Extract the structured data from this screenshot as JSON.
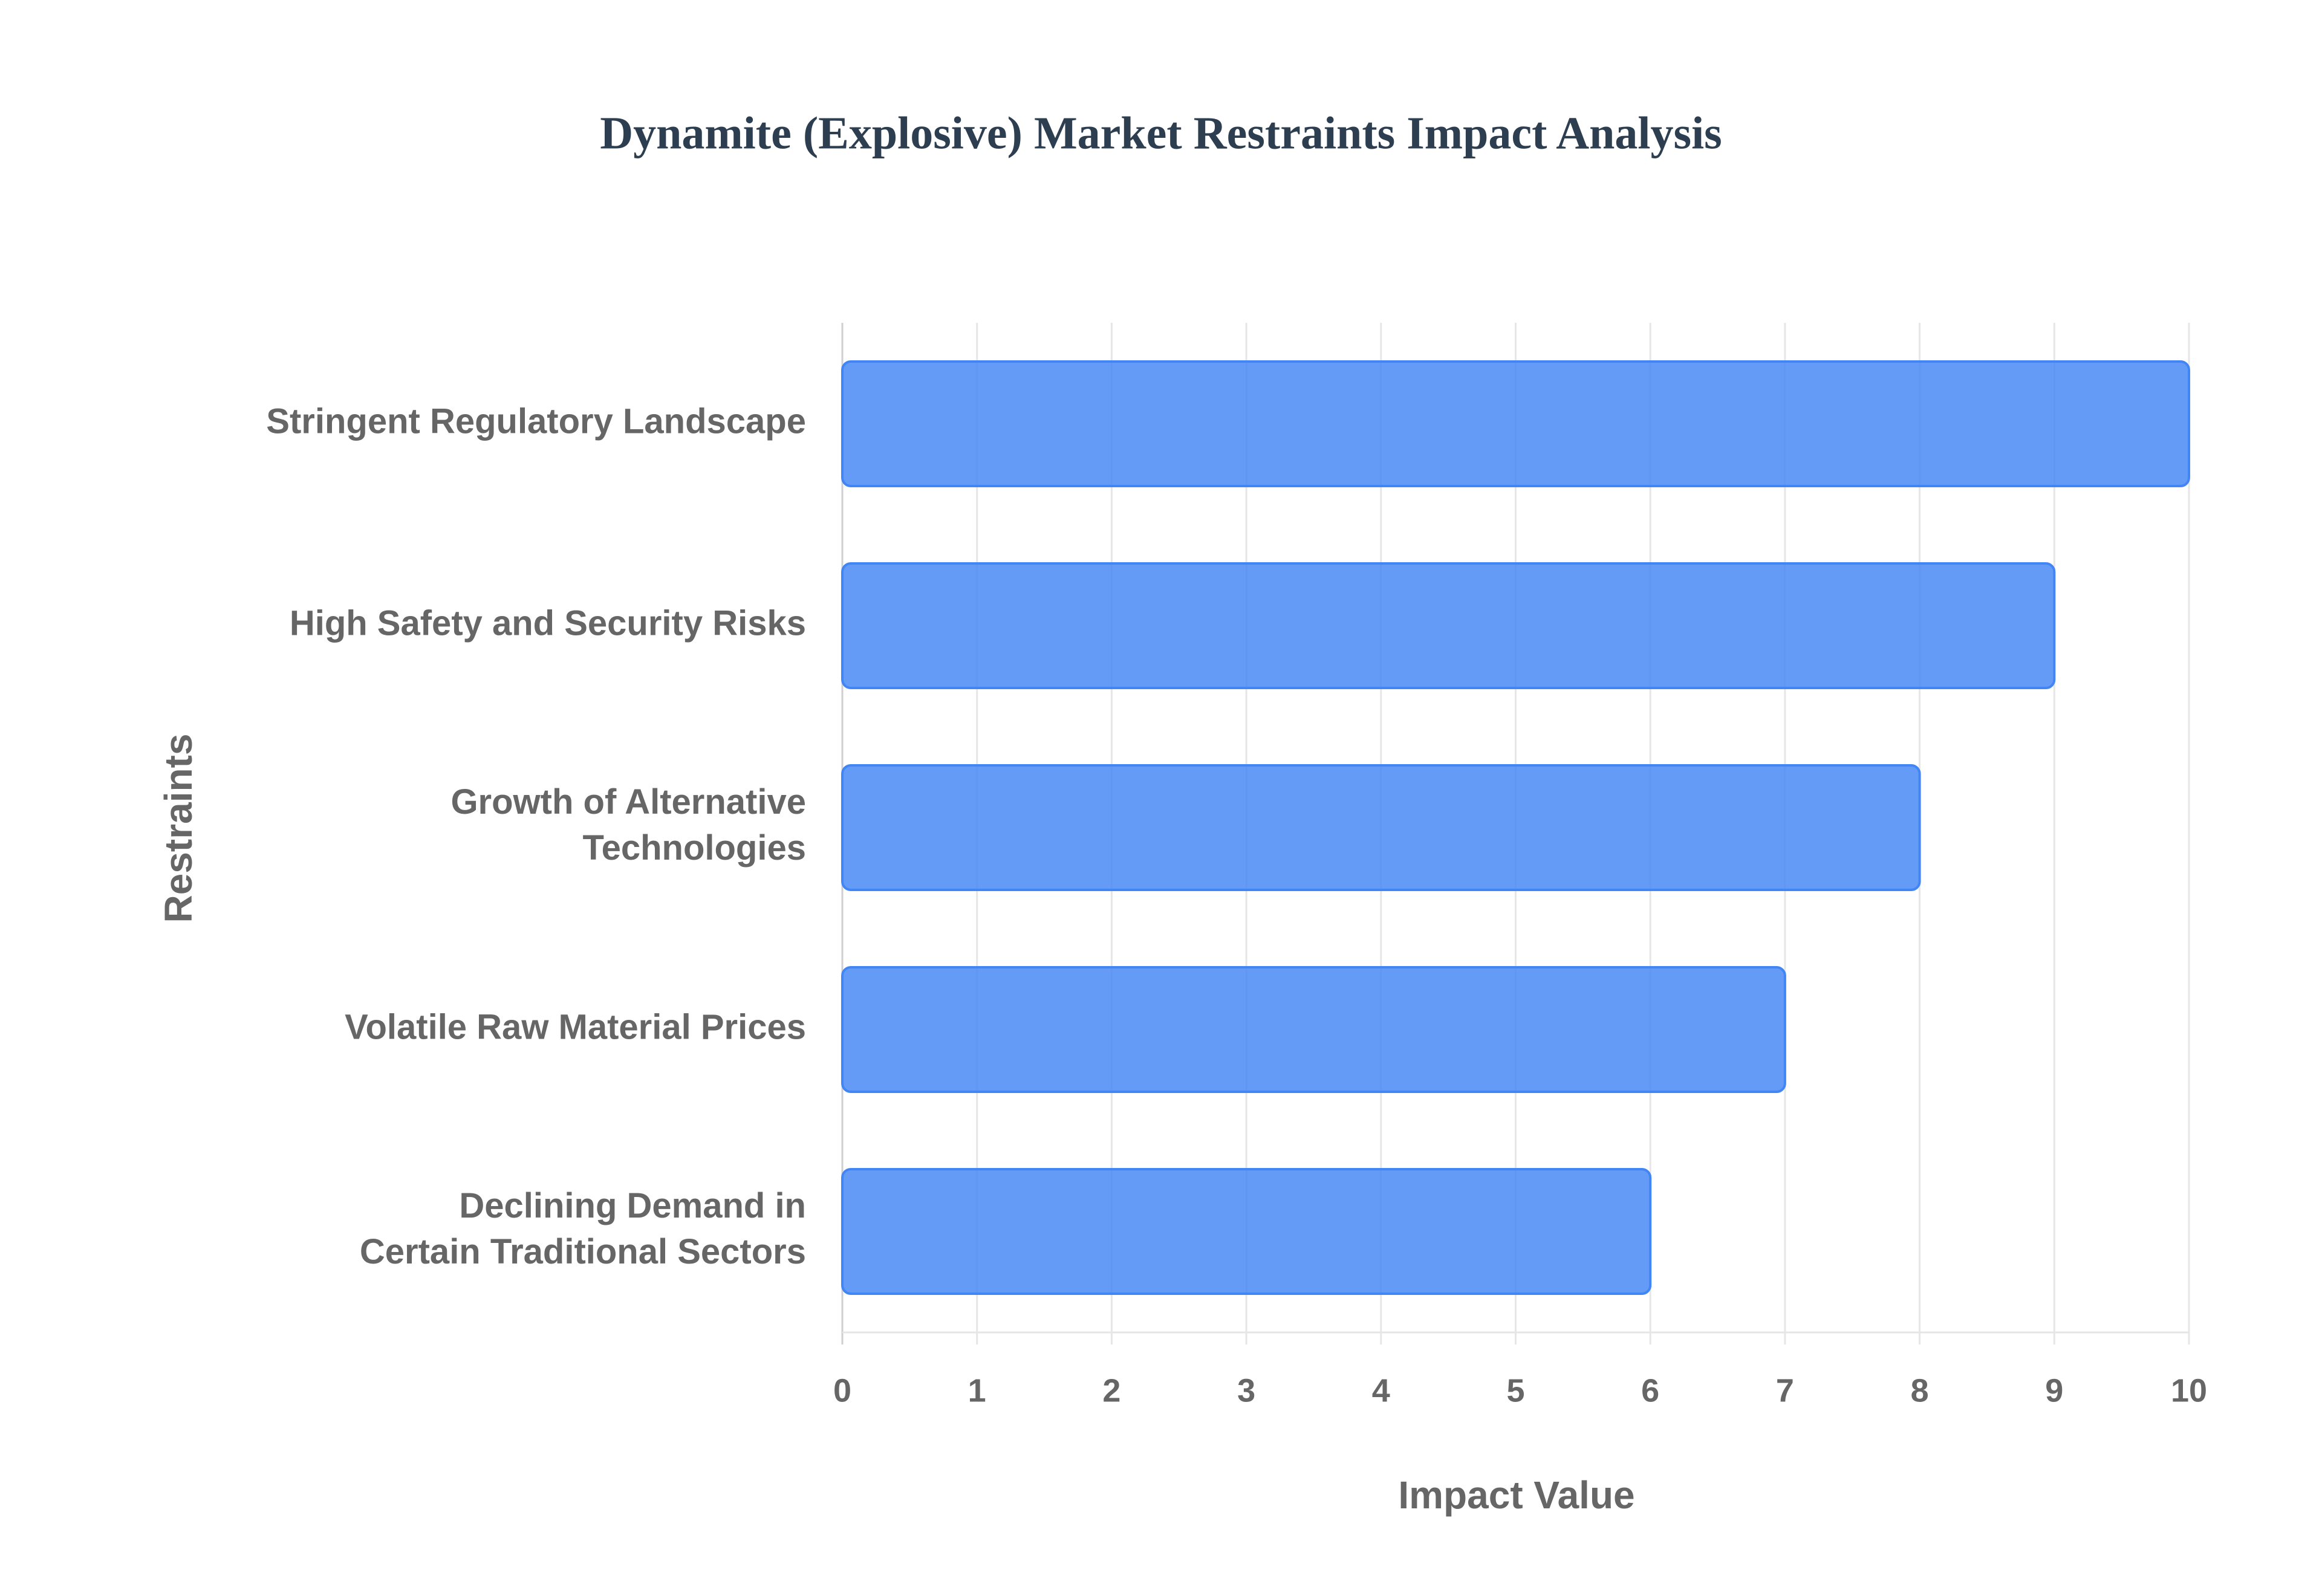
{
  "chart_data": {
    "type": "hbar",
    "title": "Dynamite (Explosive) Market Restraints Impact Analysis",
    "x_label": "Impact Value",
    "y_label": "Restraints",
    "categories": [
      "Stringent Regulatory Landscape",
      "High Safety and Security Risks",
      "Growth of Alternative Technologies",
      "Volatile Raw Material Prices",
      "Declining Demand in Certain Traditional Sectors"
    ],
    "values": [
      10,
      9,
      8,
      7,
      6
    ],
    "color": "#4285f4",
    "xlim": [
      0,
      10
    ],
    "xticks": [
      0,
      1,
      2,
      3,
      4,
      5,
      6,
      7,
      8,
      9,
      10
    ],
    "grid": true
  }
}
